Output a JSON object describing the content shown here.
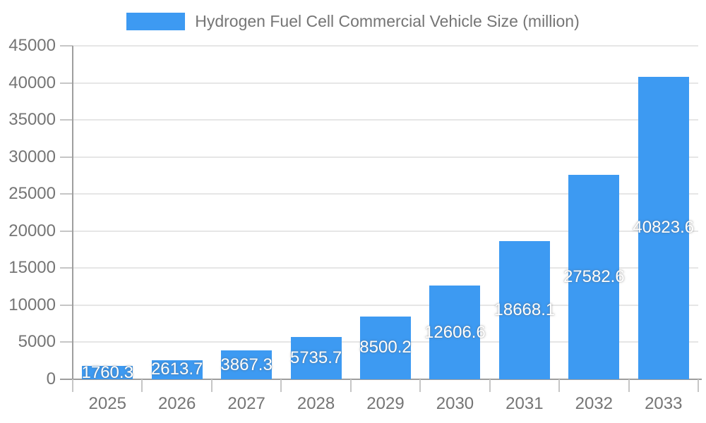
{
  "legend": {
    "label": "Hydrogen Fuel Cell Commercial Vehicle Size (million)"
  },
  "chart_data": {
    "type": "bar",
    "title": "Hydrogen Fuel Cell Commercial Vehicle Size (million)",
    "series_name": "Hydrogen Fuel Cell Commercial Vehicle Size (million)",
    "categories": [
      "2025",
      "2026",
      "2027",
      "2028",
      "2029",
      "2030",
      "2031",
      "2032",
      "2033"
    ],
    "values": [
      1760.3,
      2613.7,
      3867.3,
      5735.7,
      8500.2,
      12606.6,
      18668.1,
      27582.6,
      40823.6
    ],
    "value_labels": [
      "1760.3",
      "2613.7",
      "3867.3",
      "5735.7",
      "8500.2",
      "12606.6",
      "18668.1",
      "27582.6",
      "40823.6"
    ],
    "xlabel": "",
    "ylabel": "",
    "ylim": [
      0,
      45000
    ],
    "yticks": [
      0,
      5000,
      10000,
      15000,
      20000,
      25000,
      30000,
      35000,
      40000,
      45000
    ],
    "grid": true,
    "legend_position": "top-center",
    "colors": {
      "bar": "#3d9af2",
      "axis_text": "#757575",
      "gridline": "#e6e6e6",
      "axis_line": "#9e9e9e",
      "tick": "#c6c6c6",
      "bar_label_text": "#ffffff",
      "background": "#ffffff"
    }
  }
}
